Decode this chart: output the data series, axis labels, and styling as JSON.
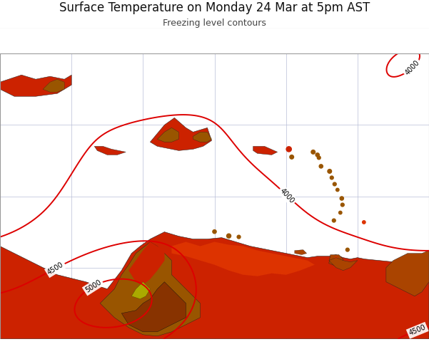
{
  "title": "Surface Temperature on Monday 24 Mar at 5pm AST",
  "subtitle": "Freezing level contours",
  "title_fontsize": 12,
  "subtitle_fontsize": 9,
  "background_color": "#ffffff",
  "map_bg_color": "#cdd2e8",
  "title_bg_color": "#f5f5f5",
  "contour_color": "#dd0000",
  "contour_linewidth": 1.4,
  "grid_color": "#b8bdd8",
  "grid_linewidth": 0.5,
  "lon_min": -85,
  "lon_max": -55,
  "lat_min": 5,
  "lat_max": 25,
  "contour_levels": [
    4000,
    4500,
    5000
  ],
  "land_colors": {
    "lowland_red": "#cc2200",
    "lowland_red2": "#dd3300",
    "highland_brown": "#995500",
    "mid_brown": "#aa4400",
    "dark_brown": "#883300",
    "yellow_green": "#aaaa00",
    "light_brown": "#bb7700"
  }
}
